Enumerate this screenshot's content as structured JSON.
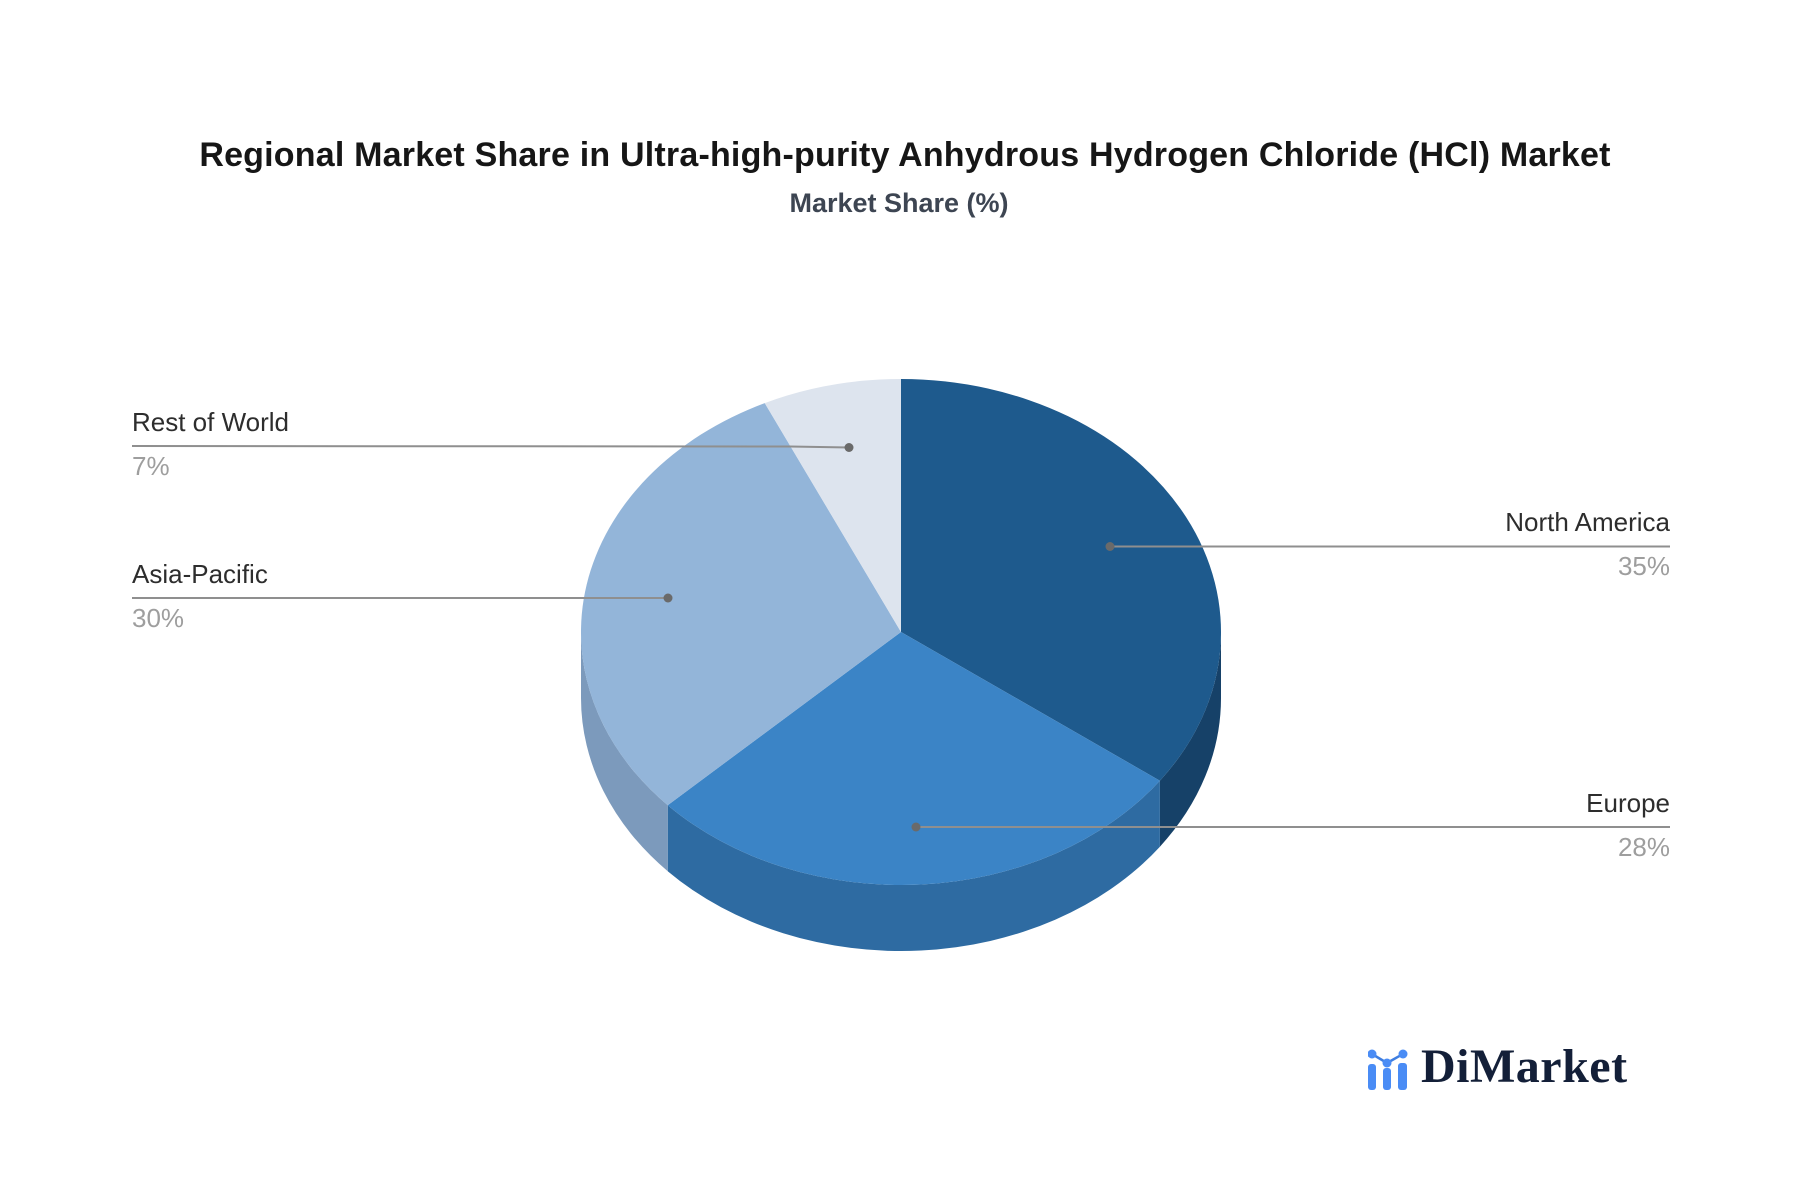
{
  "header": {
    "title": "Regional Market Share in Ultra-high-purity Anhydrous Hydrogen Chloride (HCl) Market",
    "subtitle": "Market Share (%)"
  },
  "chart_data": {
    "type": "pie",
    "style": "3d",
    "title": "Regional Market Share in Ultra-high-purity Anhydrous Hydrogen Chloride (HCl) Market",
    "value_label": "Market Share (%)",
    "unit": "%",
    "start_angle_deg": 0,
    "direction": "clockwise",
    "legend": "none (callout labels with leader lines)",
    "slices": [
      {
        "name": "North America",
        "value": 35,
        "pct_label": "35%",
        "color": "#1e5a8d",
        "side_color": "#164168"
      },
      {
        "name": "Europe",
        "value": 28,
        "pct_label": "28%",
        "color": "#3b84c6",
        "side_color": "#2e6ba2"
      },
      {
        "name": "Asia-Pacific",
        "value": 30,
        "pct_label": "30%",
        "color": "#93b5d9",
        "side_color": "#7c9abc"
      },
      {
        "name": "Rest of World",
        "value": 7,
        "pct_label": "7%",
        "color": "#dde4ee",
        "side_color": "#c3cbdb"
      }
    ]
  },
  "colors": {
    "title": "#161616",
    "subtitle": "#3d4552",
    "label_text": "#2d2d2d",
    "pct_text": "#9e9e9e",
    "leader_line": "#8f8f8f",
    "leader_dot": "#6a6a6a",
    "background": "#ffffff"
  },
  "branding": {
    "logo_text": "DiMarket",
    "logo_icon": "bar-chart-trend-dots-icon",
    "icon_color": "#4a8cf5",
    "text_color": "#131f38"
  }
}
